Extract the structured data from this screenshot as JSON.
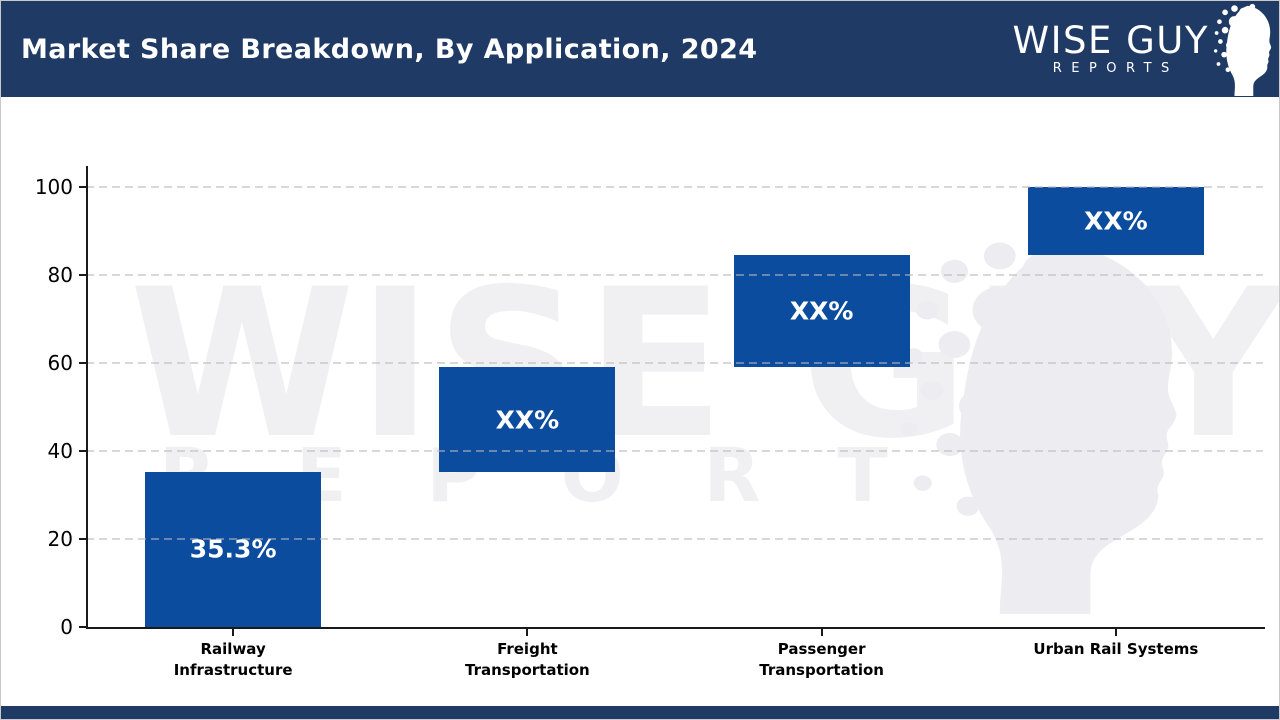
{
  "header": {
    "title": "Market Share Breakdown, By Application, 2024",
    "brand": {
      "name": "WISE GUY",
      "subtitle": "REPORTS"
    }
  },
  "watermark": {
    "line1": "WISE GUY",
    "line2": "REPORTS"
  },
  "colors": {
    "header_bg": "#203a66",
    "footer_bg": "#203a66",
    "bar_fill": "#0c4c9f",
    "bar_label_text": "#ffffff",
    "axis": "#1a1a1a",
    "gridline_on_white": "#dcdcdc",
    "watermark": "#f0f0f3"
  },
  "chart_data": {
    "type": "bar",
    "subtype": "waterfall-floating-bars",
    "title": "Market Share Breakdown, By Application, 2024",
    "xlabel": "",
    "ylabel": "",
    "ylim": [
      0,
      100
    ],
    "yticks": [
      0,
      20,
      40,
      60,
      80,
      100
    ],
    "grid": "dashed horizontal",
    "legend": "none",
    "categories": [
      "Railway Infrastructure",
      "Freight Transportation",
      "Passenger Transportation",
      "Urban Rail Systems"
    ],
    "segments": [
      {
        "lines": [
          "Railway",
          "Infrastructure"
        ],
        "start": 0,
        "end": 35.3,
        "label": "35.3%"
      },
      {
        "lines": [
          "Freight",
          "Transportation"
        ],
        "start": 35.3,
        "end": 59,
        "label": "XX%"
      },
      {
        "lines": [
          "Passenger",
          "Transportation"
        ],
        "start": 59,
        "end": 84.6,
        "label": "XX%"
      },
      {
        "lines": [
          "Urban Rail Systems"
        ],
        "start": 84.6,
        "end": 100,
        "label": "XX%"
      }
    ]
  }
}
